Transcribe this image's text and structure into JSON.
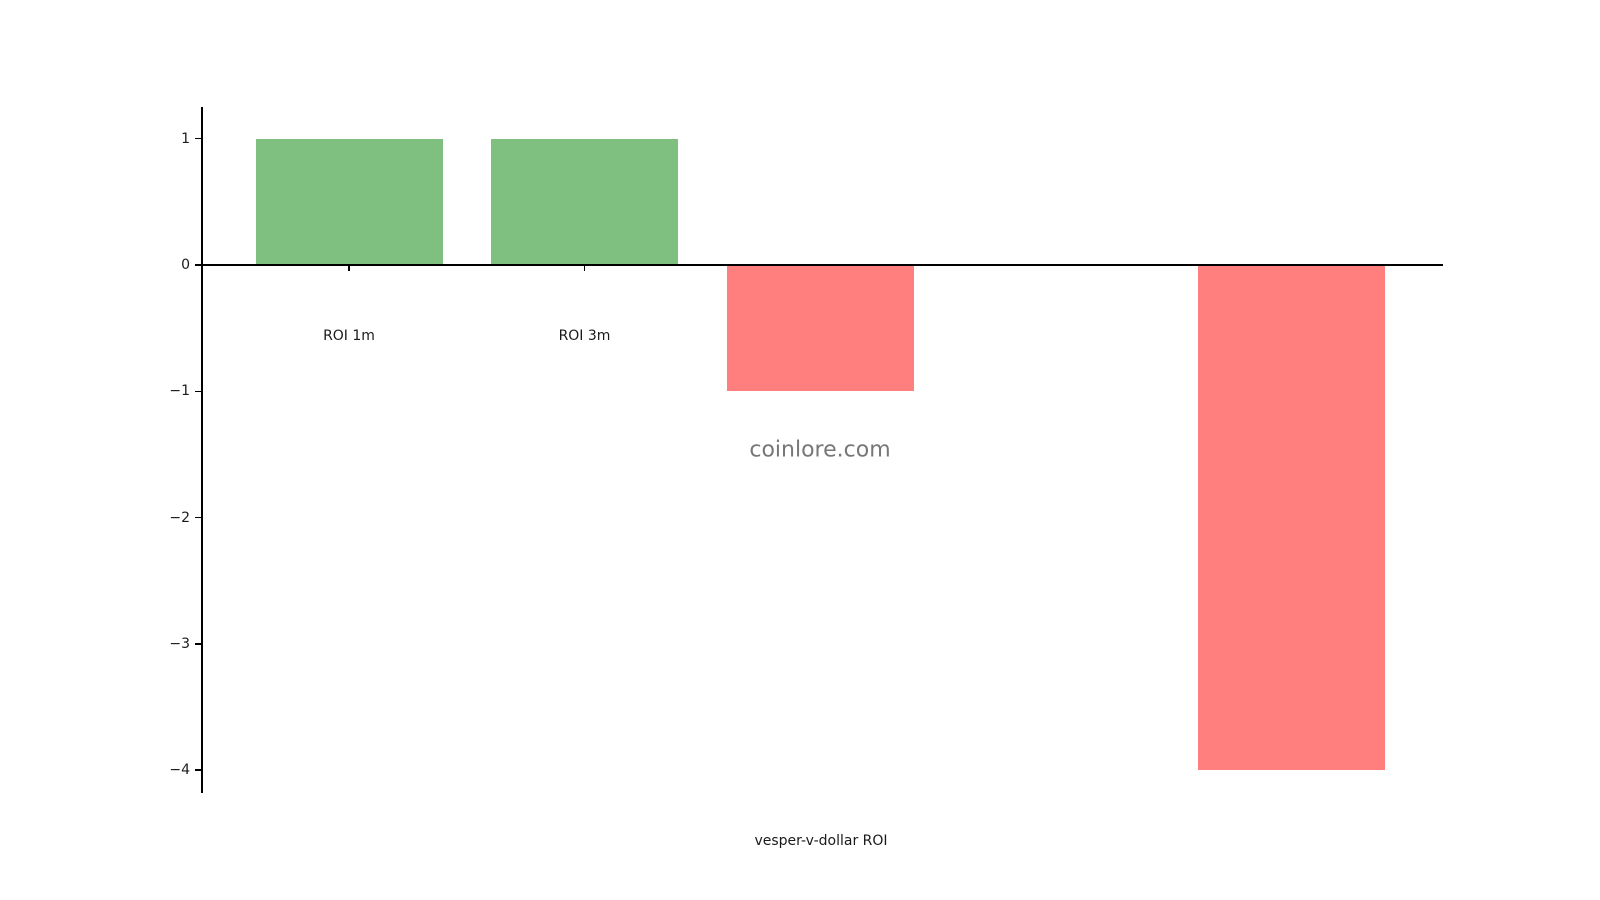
{
  "chart_data": {
    "type": "bar",
    "title": "vesper-v-dollar ROI",
    "watermark": "coinlore.com",
    "categories": [
      "ROI 1m",
      "ROI 3m",
      "",
      ""
    ],
    "values": [
      1,
      1,
      -1,
      -4
    ],
    "slots": [
      0,
      1,
      2,
      4
    ],
    "yticks": [
      1,
      0,
      -1,
      -2,
      -3,
      -4
    ],
    "ylim": [
      -4.2,
      1.25
    ],
    "grid": false,
    "legend": false,
    "colors": {
      "positive": "#7fbf7f",
      "negative": "#ff7f7f",
      "axis": "#000000",
      "text": "#1a1a1a",
      "watermark": "#777777"
    }
  }
}
